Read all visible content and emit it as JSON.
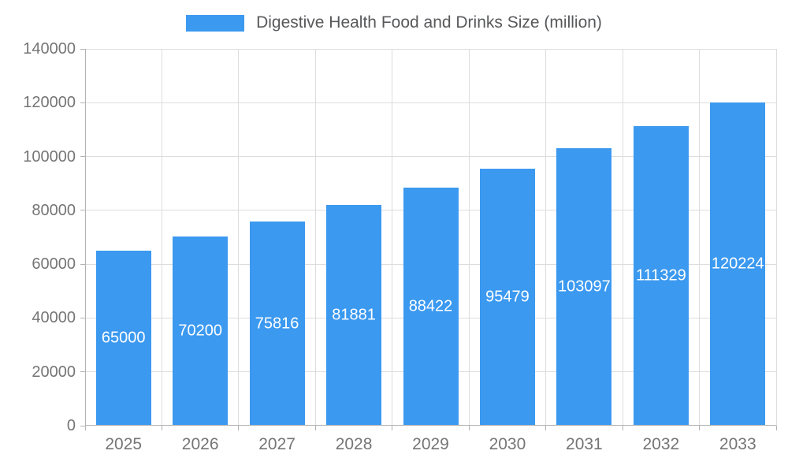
{
  "legend": {
    "label": "Digestive Health Food and Drinks Size (million)"
  },
  "chart_data": {
    "type": "bar",
    "title": "Digestive Health Food and Drinks Size (million)",
    "categories": [
      "2025",
      "2026",
      "2027",
      "2028",
      "2029",
      "2030",
      "2031",
      "2032",
      "2033"
    ],
    "values": [
      65000,
      70200,
      75816,
      81881,
      88422,
      95479,
      103097,
      111329,
      120224
    ],
    "bar_labels": [
      "65000",
      "70200",
      "75816",
      "81881",
      "88422",
      "95479",
      "103097",
      "111329",
      "120224"
    ],
    "xlabel": "",
    "ylabel": "",
    "ylim": [
      0,
      140000
    ],
    "yticks": [
      0,
      20000,
      40000,
      60000,
      80000,
      100000,
      120000,
      140000
    ],
    "grid": true,
    "legend_position": "top",
    "colors": {
      "bar": "#3b99f0",
      "grid": "#dddddd",
      "axis": "#b3b3b3",
      "tick_text": "#757575",
      "bar_label_text": "#ffffff",
      "legend_text": "#58595b",
      "background": "#ffffff"
    }
  }
}
